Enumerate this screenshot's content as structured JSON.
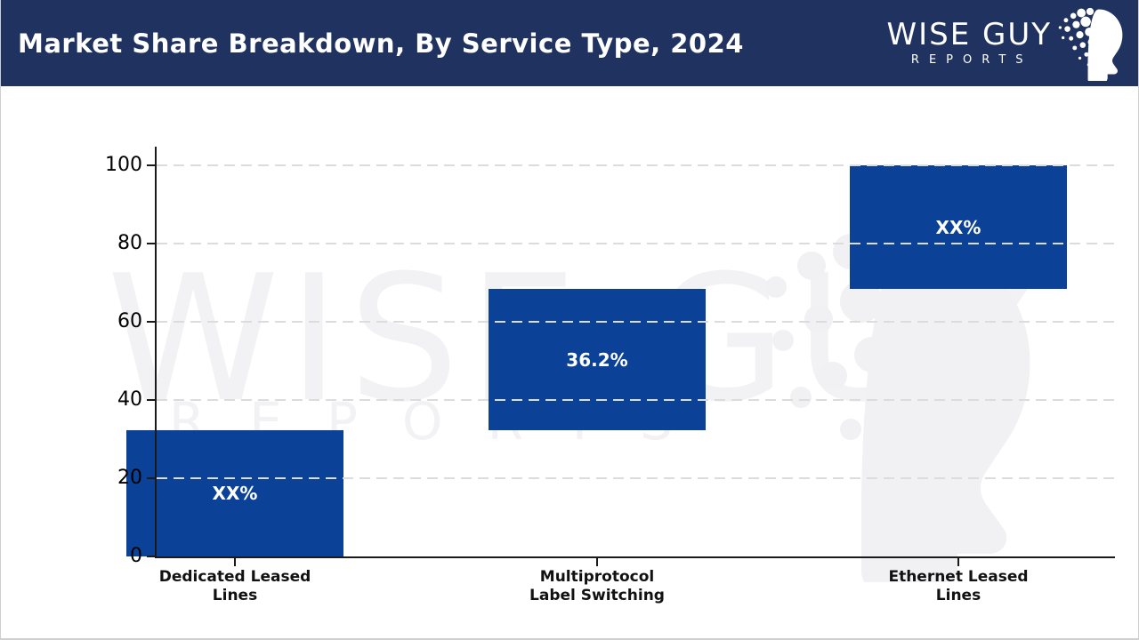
{
  "header": {
    "title": "Market Share Breakdown, By Service Type, 2024",
    "logo": {
      "brand": "WISE GUY",
      "sub": "REPORTS"
    }
  },
  "watermark": {
    "brand": "WISE GUY",
    "sub": "REPORTS"
  },
  "colors": {
    "header_bg": "#203260",
    "bar": "#0b4196",
    "grid": "#dcdcdc",
    "axis": "#1a1a1a",
    "watermark": "#f2f2f5"
  },
  "chart_data": {
    "type": "bar",
    "subtype": "floating-waterfall",
    "title": "Market Share Breakdown, By Service Type, 2024",
    "categories": [
      "Dedicated Leased\nLines",
      "Multiprotocol\nLabel Switching",
      "Ethernet Leased\nLines"
    ],
    "series": [
      {
        "name": "Market share (%)",
        "segments": [
          {
            "category": "Dedicated Leased Lines",
            "start": 0,
            "end": 32.2,
            "label": "XX%"
          },
          {
            "category": "Multiprotocol Label Switching",
            "start": 32.2,
            "end": 68.4,
            "label": "36.2%"
          },
          {
            "category": "Ethernet Leased Lines",
            "start": 68.4,
            "end": 100,
            "label": "XX%"
          }
        ]
      }
    ],
    "ylim": [
      0,
      100
    ],
    "yticks": [
      0,
      20,
      40,
      60,
      80,
      100
    ],
    "xlabel": "",
    "ylabel": "",
    "grid": "horizontal-dashed",
    "legend": "none"
  }
}
